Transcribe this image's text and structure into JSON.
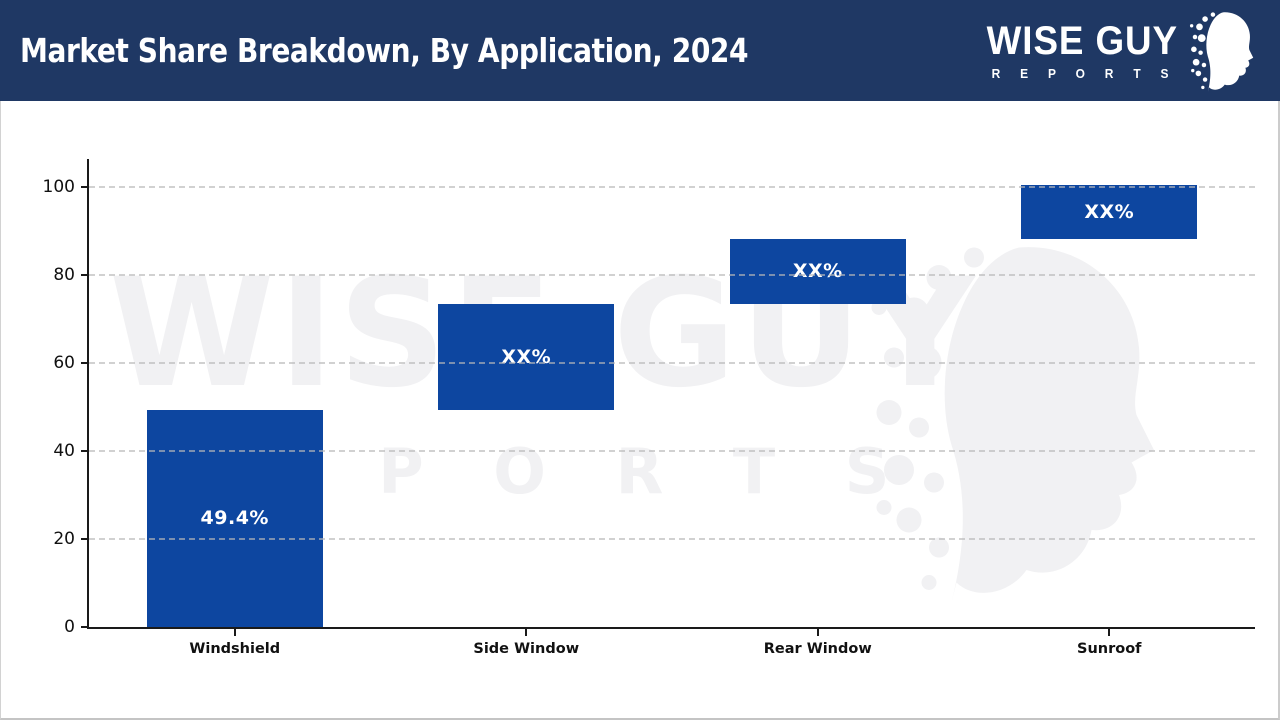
{
  "header": {
    "title": "Market Share Breakdown, By Application, 2024",
    "logo": {
      "line1": "WISE GUY",
      "line2": "R E P O R T S"
    }
  },
  "watermark": {
    "line1": "WISE GUY",
    "line2": "R E P O R T S"
  },
  "chart_data": {
    "type": "bar",
    "subtype": "waterfall",
    "title": "Market Share Breakdown, By Application, 2024",
    "categories": [
      "Windshield",
      "Side Window",
      "Rear Window",
      "Sunroof"
    ],
    "segments": [
      {
        "category": "Windshield",
        "start": 0,
        "end": 49.4,
        "label": "49.4%"
      },
      {
        "category": "Side Window",
        "start": 49.4,
        "end": 73.4,
        "label": "XX%"
      },
      {
        "category": "Rear Window",
        "start": 73.4,
        "end": 88.2,
        "label": "XX%"
      },
      {
        "category": "Sunroof",
        "start": 88.2,
        "end": 100.5,
        "label": "XX%"
      }
    ],
    "y_ticks": [
      "0",
      "20",
      "40",
      "60",
      "80",
      "100"
    ],
    "y_tick_values": [
      0,
      20,
      40,
      60,
      80,
      100
    ],
    "ylim": [
      0,
      105
    ],
    "xlabel": "",
    "ylabel": "",
    "grid": "horizontal-dashed",
    "legend": "none"
  },
  "colors": {
    "header_bg": "#1f3864",
    "bar": "#0d46a0",
    "bar_label": "#ffffff",
    "axis": "#1a1a1a",
    "grid": "#d9d9d9",
    "watermark": "#f1f1f3",
    "title_text": "#ffffff"
  }
}
